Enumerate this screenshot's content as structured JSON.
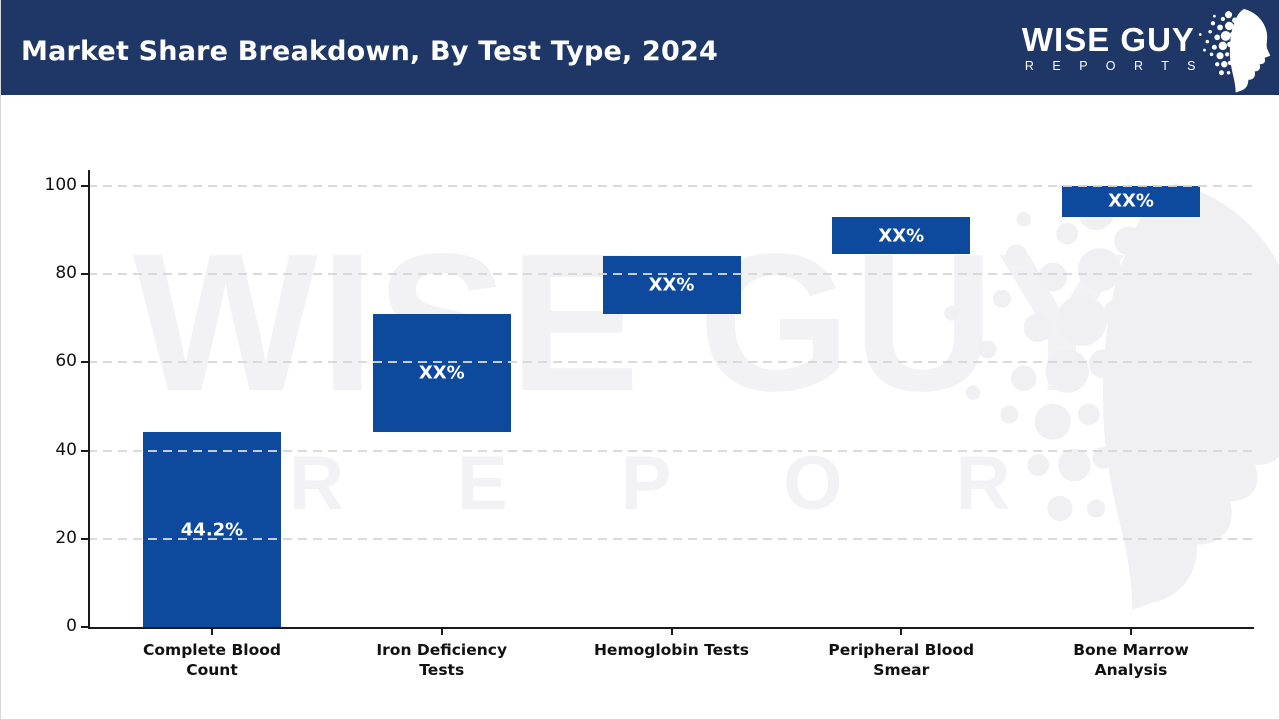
{
  "header": {
    "title": "Market Share Breakdown, By Test Type, 2024",
    "logo": {
      "brand_line1": "WISE GUY",
      "brand_line2": "R E P O R T S"
    }
  },
  "watermark": {
    "line1": "WISE GUY",
    "line2": "R E P O R T S"
  },
  "chart_data": {
    "type": "bar",
    "subtype": "waterfall",
    "title": "Market Share Breakdown, By Test Type, 2024",
    "xlabel": "",
    "ylabel": "",
    "legend": null,
    "grid": {
      "horizontal": true,
      "style": "dashed"
    },
    "categories": [
      "Complete Blood Count",
      "Iron Deficiency Tests",
      "Hemoglobin Tests",
      "Peripheral Blood Smear",
      "Bone Marrow Analysis"
    ],
    "category_label_lines": [
      [
        "Complete Blood",
        "Count"
      ],
      [
        "Iron Deficiency",
        "Tests"
      ],
      [
        "Hemoglobin Tests"
      ],
      [
        "Peripheral Blood",
        "Smear"
      ],
      [
        "Bone Marrow",
        "Analysis"
      ]
    ],
    "segments": [
      {
        "category": "Complete Blood Count",
        "start": 0,
        "end": 44.2,
        "value_label": "44.2%"
      },
      {
        "category": "Iron Deficiency Tests",
        "start": 44.2,
        "end": 71.0,
        "value_label": "XX%"
      },
      {
        "category": "Hemoglobin Tests",
        "start": 71.0,
        "end": 84.2,
        "value_label": "XX%"
      },
      {
        "category": "Peripheral Blood Smear",
        "start": 84.5,
        "end": 93.0,
        "value_label": "XX%"
      },
      {
        "category": "Bone Marrow Analysis",
        "start": 93.0,
        "end": 100.0,
        "value_label": "XX%"
      }
    ],
    "y_axis": {
      "ticks": [
        0,
        20,
        40,
        60,
        80,
        100
      ],
      "range": [
        0,
        103.5
      ]
    },
    "colors": {
      "bar": "#0d4a9e",
      "value_label": "#ffffff",
      "grid": "#d9d9d9",
      "axis": "#1a1a1a",
      "tick_label": "#111111",
      "header_bg": "#1e3766",
      "watermark": "#f2f2f4"
    }
  }
}
